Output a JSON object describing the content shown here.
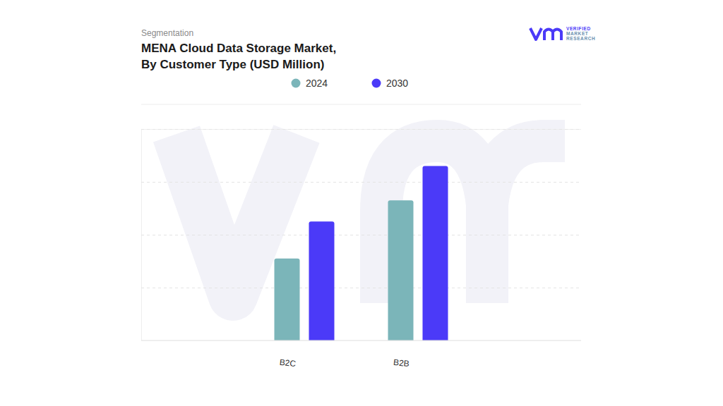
{
  "chart_data": {
    "type": "bar",
    "subtitle": "Segmentation",
    "title": "MENA Cloud Data Storage Market,\nBy Customer Type (USD Million)",
    "annotations": [
      "VERIFIED",
      "MARKET",
      "RESEARCH"
    ],
    "categories": [
      "B2C",
      "B2B"
    ],
    "series": [
      {
        "name": "2024",
        "color": "#7bb5b9",
        "values": [
          1.55,
          2.65
        ]
      },
      {
        "name": "2030",
        "color": "#4b3af8",
        "values": [
          2.25,
          3.3
        ]
      }
    ],
    "ylim": [
      0,
      4
    ],
    "yticks": [
      0,
      1,
      2,
      3,
      4
    ],
    "grid": true,
    "legend": "top",
    "tick_labels": "x"
  }
}
